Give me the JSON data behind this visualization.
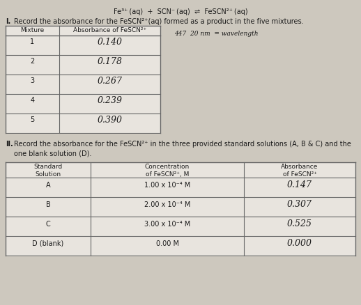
{
  "background_color": "#cdc8be",
  "title_equation": "Fe³⁺ (aq)  +  SCN⁻ (aq)  ⇌  FeSCN²⁺ (aq)",
  "section1_label": "I.",
  "section1_text": "Record the absorbance for the FeSCN²⁺(aq) formed as a product in the five mixtures.",
  "annotation": "447  20 nm  = wavelength",
  "table1_headers": [
    "Mixture",
    "Absorbance of FeSCN²⁺"
  ],
  "table1_rows": [
    [
      "1",
      "0.140"
    ],
    [
      "2",
      "0.178"
    ],
    [
      "3",
      "0.267"
    ],
    [
      "4",
      "0.239"
    ],
    [
      "5",
      "0.390"
    ]
  ],
  "section2_label": "II.",
  "section2_text": "Record the absorbance for the FeSCN²⁺ in the three provided standard solutions (A, B & C) and the\none blank solution (D).",
  "table2_headers": [
    "Standard\nSolution",
    "Concentration\nof FeSCN²⁺, M",
    "Absorbance\nof FeSCN²⁺"
  ],
  "table2_rows": [
    [
      "A",
      "1.00 x 10⁻⁴ M",
      "0.147"
    ],
    [
      "B",
      "2.00 x 10⁻⁴ M",
      "0.307"
    ],
    [
      "C",
      "3.00 x 10⁻⁴ M",
      "0.525"
    ],
    [
      "D (blank)",
      "0.00 M",
      "0.000"
    ]
  ],
  "text_color": "#1a1a1a",
  "table_line_color": "#666666",
  "handwritten_color": "#1a1a1a",
  "table_bg": "#e8e4de"
}
